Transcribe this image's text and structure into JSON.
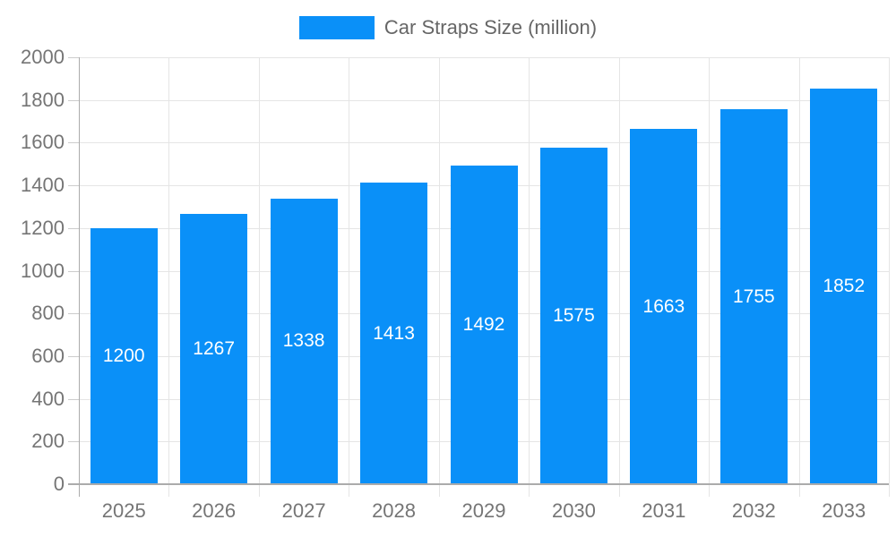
{
  "legend": {
    "label": "Car Straps Size (million)",
    "swatch_color": "#0a90f8"
  },
  "chart_data": {
    "type": "bar",
    "title": "Car Straps Size (million)",
    "categories": [
      "2025",
      "2026",
      "2027",
      "2028",
      "2029",
      "2030",
      "2031",
      "2032",
      "2033"
    ],
    "series": [
      {
        "name": "Car Straps Size (million)",
        "values": [
          1200,
          1267,
          1338,
          1413,
          1492,
          1575,
          1663,
          1755,
          1852
        ],
        "color": "#0a90f8"
      }
    ],
    "value_labels": [
      "1200",
      "1267",
      "1338",
      "1413",
      "1492",
      "1575",
      "1663",
      "1755",
      "1852"
    ],
    "xlabel": "",
    "ylabel": "",
    "ylim": [
      0,
      2000
    ],
    "ytick_step": 200,
    "yticks": [
      "0",
      "200",
      "400",
      "600",
      "800",
      "1000",
      "1200",
      "1400",
      "1600",
      "1800",
      "2000"
    ],
    "grid": true,
    "legend_position": "top"
  },
  "colors": {
    "bar": "#0a90f8",
    "gridline": "#e5e5e5",
    "axis_line": "#ababab",
    "tick_label": "#757575",
    "legend_text": "#666666",
    "value_label": "#ffffff",
    "background": "#ffffff"
  }
}
